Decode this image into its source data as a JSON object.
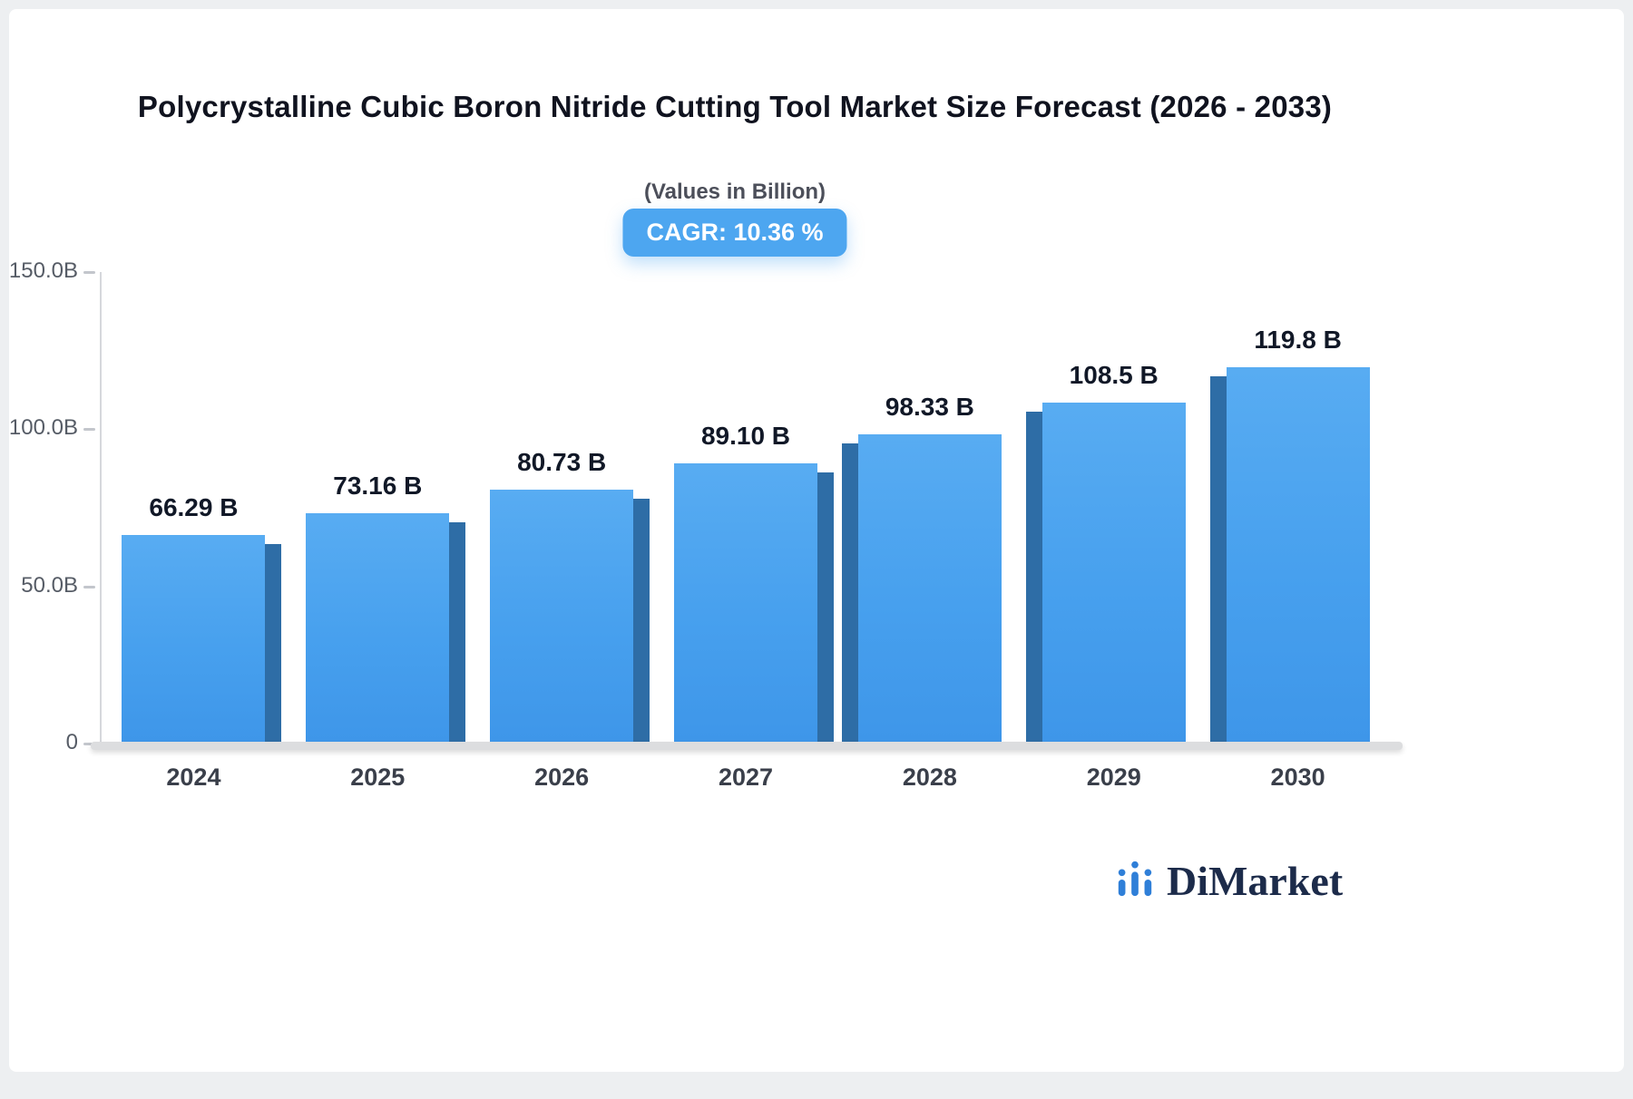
{
  "title": "Polycrystalline Cubic Boron Nitride Cutting Tool Market Size Forecast (2026 - 2033)",
  "subtitle": "(Values in Billion)",
  "badge": {
    "label": "CAGR: 10.36 %"
  },
  "chart_data": {
    "type": "bar",
    "categories": [
      "2024",
      "2025",
      "2026",
      "2027",
      "2028",
      "2029",
      "2030"
    ],
    "values": [
      66.29,
      73.16,
      80.73,
      89.1,
      98.33,
      108.5,
      119.8
    ],
    "value_labels": [
      "66.29 B",
      "73.16 B",
      "80.73 B",
      "89.10 B",
      "98.33 B",
      "108.5 B",
      "119.8 B"
    ],
    "title": "Polycrystalline Cubic Boron Nitride Cutting Tool Market Size Forecast (2026 - 2033)",
    "xlabel": "",
    "ylabel": "",
    "ylim": [
      0,
      150
    ],
    "yticks": [
      {
        "value": 0,
        "label": "0"
      },
      {
        "value": 50,
        "label": "50.0B"
      },
      {
        "value": 100,
        "label": "100.0B"
      },
      {
        "value": 150,
        "label": "150.0B"
      }
    ],
    "grid": false,
    "legend": "none",
    "bar_color": "#47A0EE",
    "bar_side_color": "#2E6DA6"
  },
  "logo": {
    "text": "DiMarket",
    "icon_color": "#2f7fd8"
  }
}
